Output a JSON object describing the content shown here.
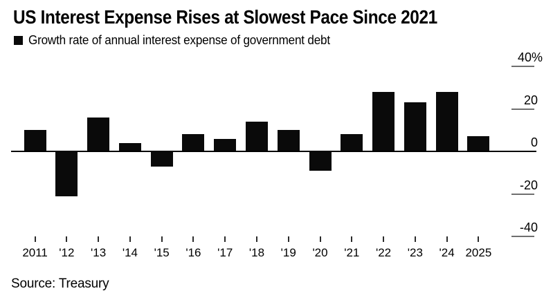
{
  "header": {
    "title": "US Interest Expense Rises at Slowest Pace Since 2021",
    "legend_label": "Growth rate of annual interest expense of government debt"
  },
  "footer": {
    "source": "Source: Treasury"
  },
  "colors": {
    "bar": "#0a0a0a",
    "axis": "#000000",
    "grid_tick": "#6f6f6f",
    "x_tick": "#2b2b2b",
    "background": "#ffffff",
    "text": "#000000"
  },
  "chart_data": {
    "type": "bar",
    "title": "US Interest Expense Rises at Slowest Pace Since 2021",
    "series_label": "Growth rate of annual interest expense of government debt",
    "categories": [
      "2011",
      "'12",
      "'13",
      "'14",
      "'15",
      "'16",
      "'17",
      "'18",
      "'19",
      "'20",
      "'21",
      "'22",
      "'23",
      "'24",
      "2025"
    ],
    "values": [
      10,
      -21,
      16,
      4,
      -7,
      8,
      6,
      14,
      10,
      -9,
      8,
      28,
      23,
      28,
      7
    ],
    "unit": "%",
    "xlabel": "",
    "ylabel": "",
    "ylim": [
      -45,
      42
    ],
    "yticks": [
      40,
      20,
      0,
      -20,
      -40
    ],
    "ytick_labels": [
      "40%",
      "20",
      "0",
      "-20",
      "-40"
    ],
    "legend_position": "top-left",
    "grid": "right-side tick dashes only, zero baseline drawn as solid axis",
    "source": "Source: Treasury"
  }
}
